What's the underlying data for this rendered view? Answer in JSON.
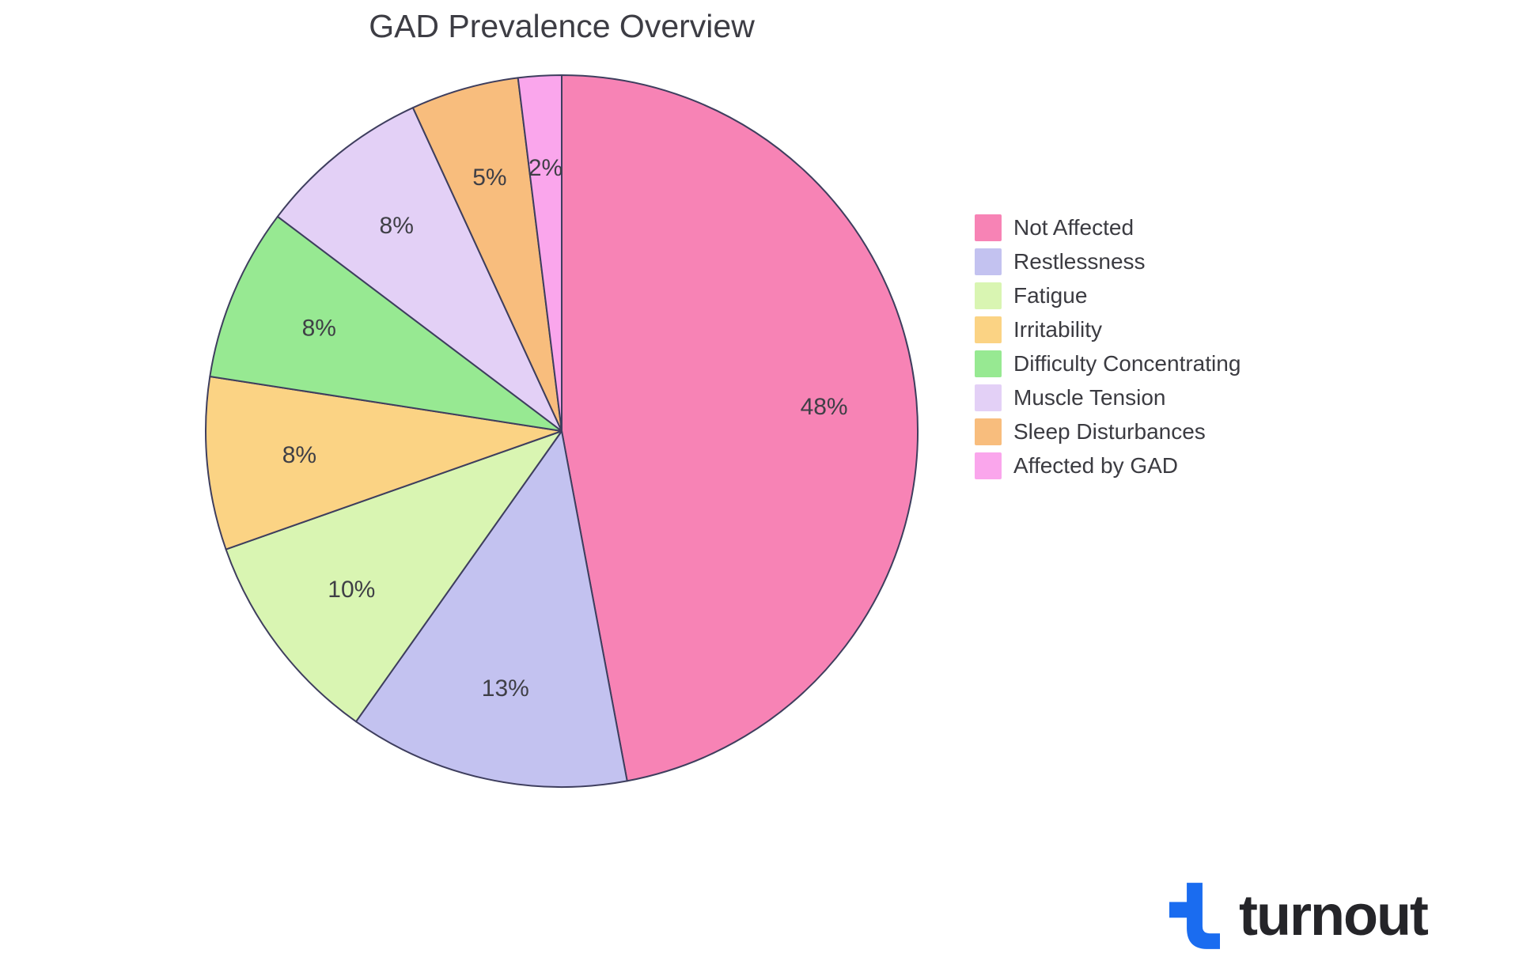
{
  "brand": {
    "name": "turnout",
    "color": "#1a6cf0"
  },
  "chart_data": {
    "type": "pie",
    "title": "GAD Prevalence Overview",
    "legend_position": "right",
    "start_angle_deg": -90,
    "direction": "clockwise",
    "stroke_color": "#3e3e5e",
    "series": [
      {
        "label": "Not Affected",
        "value": 48,
        "color": "#F783B5"
      },
      {
        "label": "Restlessness",
        "value": 13,
        "color": "#C3C2F0"
      },
      {
        "label": "Fatigue",
        "value": 10,
        "color": "#D9F5B2"
      },
      {
        "label": "Irritability",
        "value": 8,
        "color": "#FBD384"
      },
      {
        "label": "Difficulty Concentrating",
        "value": 8,
        "color": "#97E992"
      },
      {
        "label": "Muscle Tension",
        "value": 8,
        "color": "#E3D0F6"
      },
      {
        "label": "Sleep Disturbances",
        "value": 5,
        "color": "#F8BD7D"
      },
      {
        "label": "Affected by GAD",
        "value": 2,
        "color": "#FAA6EC"
      }
    ],
    "value_labels": [
      "48%",
      "13%",
      "10%",
      "8%",
      "8%",
      "8%",
      "5%",
      "2%"
    ]
  }
}
